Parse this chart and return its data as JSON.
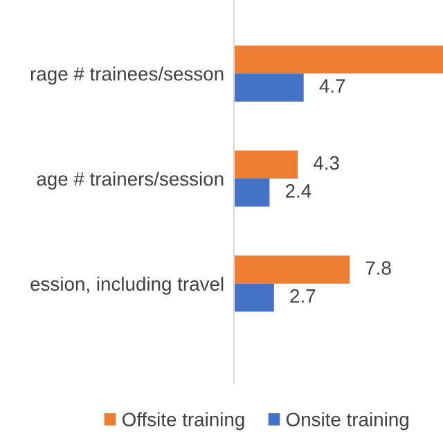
{
  "chart_data": {
    "type": "bar",
    "orientation": "horizontal",
    "categories": [
      "rage # trainees/sesson",
      "age # trainers/session",
      "ession, including travel"
    ],
    "xlim": [
      0,
      14.1
    ],
    "tick_labels": "y",
    "series": [
      {
        "name": "Offsite training",
        "color": "#ed7d31",
        "values": [
          14.1,
          4.3,
          7.8
        ],
        "value_labels": [
          null,
          "4.3",
          "7.8"
        ]
      },
      {
        "name": "Onsite training",
        "color": "#4472c4",
        "values": [
          4.7,
          2.4,
          2.7
        ],
        "value_labels": [
          "4.7",
          "2.4",
          "2.7"
        ]
      }
    ],
    "legend": "bottom",
    "grid": false
  }
}
